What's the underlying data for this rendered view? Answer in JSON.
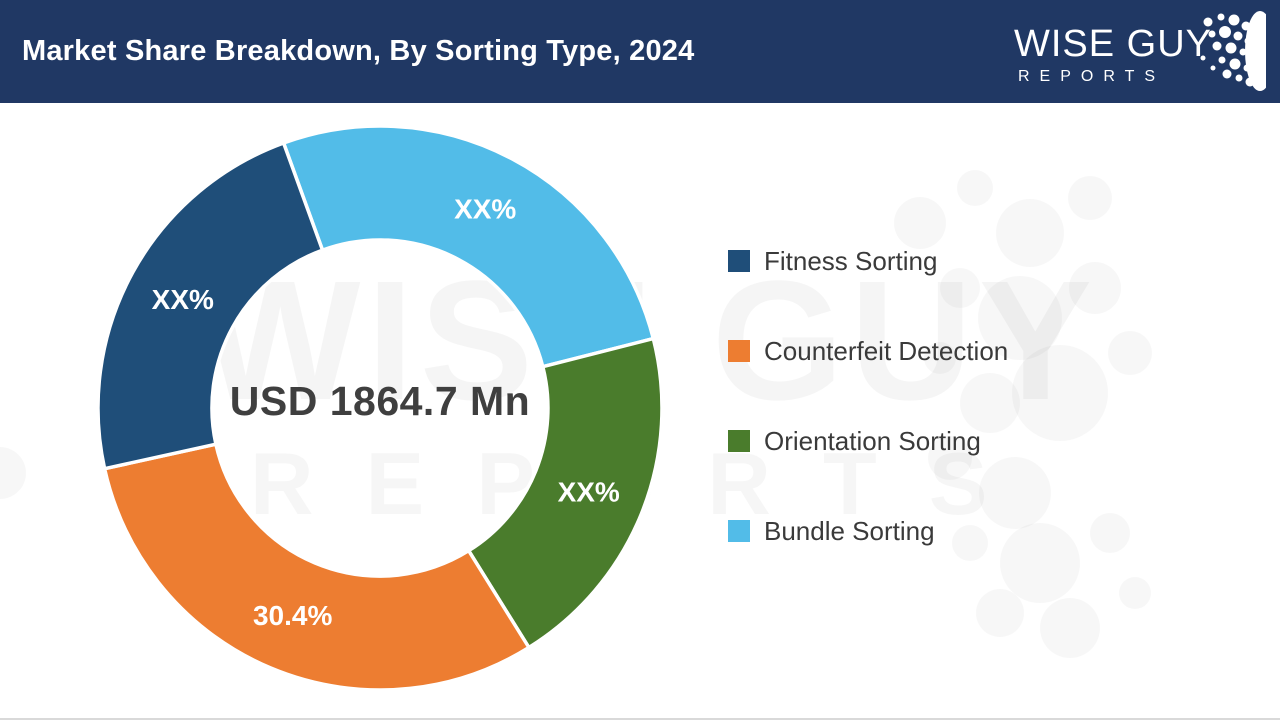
{
  "header": {
    "title": "Market Share Breakdown, By Sorting Type, 2024",
    "bg_color": "#203864",
    "logo": {
      "line1": "WISE GUY",
      "line2": "REPORTS"
    }
  },
  "watermark": {
    "line1": "WISE GUY",
    "line2": "REPORTS"
  },
  "chart_data": {
    "type": "pie",
    "donut": true,
    "title": "Market Share Breakdown, By Sorting Type, 2024",
    "center_label": "USD 1864.7 Mn",
    "start_angle_deg": -20,
    "legend_position": "right",
    "slices": [
      {
        "label": "Bundle Sorting",
        "value_pct": 26.6,
        "display_label": "XX%",
        "color": "#52BCE8"
      },
      {
        "label": "Orientation Sorting",
        "value_pct": 20.1,
        "display_label": "XX%",
        "color": "#4A7C2C"
      },
      {
        "label": "Counterfeit Detection",
        "value_pct": 30.4,
        "display_label": "30.4%",
        "color": "#ED7D31"
      },
      {
        "label": "Fitness Sorting",
        "value_pct": 22.9,
        "display_label": "XX%",
        "color": "#1F4E79"
      }
    ]
  },
  "legend": {
    "items": [
      {
        "label": "Fitness Sorting",
        "color": "#1F4E79"
      },
      {
        "label": "Counterfeit Detection",
        "color": "#ED7D31"
      },
      {
        "label": "Orientation Sorting",
        "color": "#4A7C2C"
      },
      {
        "label": "Bundle Sorting",
        "color": "#52BCE8"
      }
    ]
  }
}
